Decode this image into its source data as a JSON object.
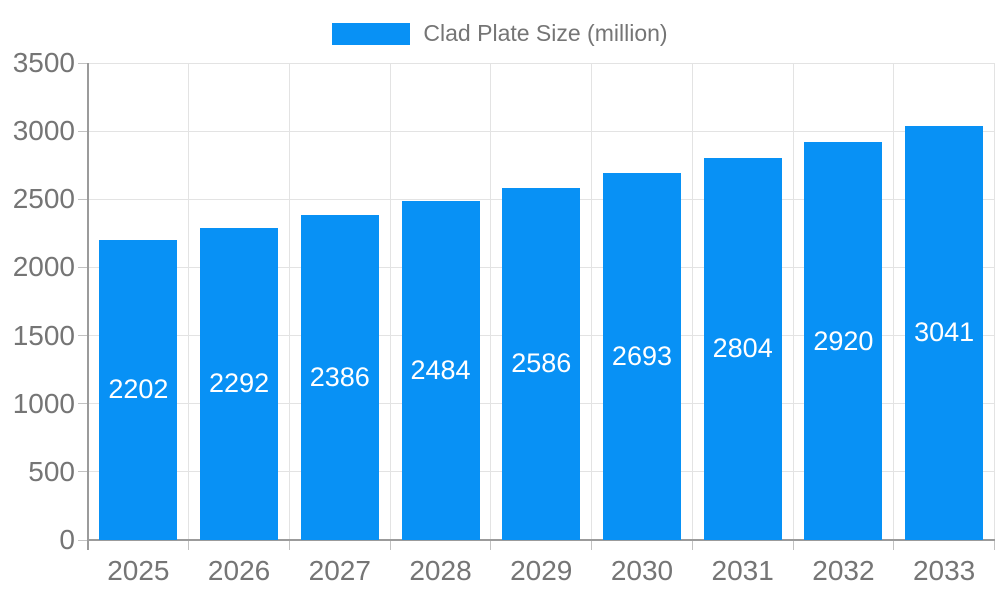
{
  "legend": {
    "items": [
      {
        "label": "Clad Plate Size (million)",
        "color": "#0891f5"
      }
    ],
    "position": "top-center"
  },
  "chart_data": {
    "type": "bar",
    "title": "",
    "categories": [
      "2025",
      "2026",
      "2027",
      "2028",
      "2029",
      "2030",
      "2031",
      "2032",
      "2033"
    ],
    "series": [
      {
        "name": "Clad Plate Size (million)",
        "values": [
          2202,
          2292,
          2386,
          2484,
          2586,
          2693,
          2804,
          2920,
          3041
        ],
        "color": "#0891f5"
      }
    ],
    "xlabel": "",
    "ylabel": "",
    "ylim": [
      0,
      3500
    ],
    "ytick_step": 500,
    "ytick_labels": [
      "0",
      "500",
      "1000",
      "1500",
      "2000",
      "2500",
      "3000",
      "3500"
    ],
    "grid": true,
    "bar_labels_visible": true,
    "bar_label_position": "center-inside",
    "legend_position": "top-center"
  },
  "colors": {
    "bar": "#0891f5",
    "bar_label": "#ffffff",
    "axis_line": "#9b9b9b",
    "gridline": "#e3e3e3",
    "tick": "#c2c2c2",
    "axis_label_text": "#757575",
    "legend_text": "#757575",
    "background": "#ffffff"
  }
}
